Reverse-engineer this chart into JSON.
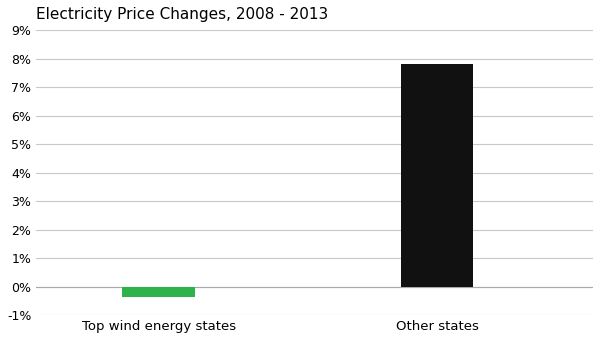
{
  "title": "Electricity Price Changes, 2008 - 2013",
  "categories": [
    "Top wind energy states",
    "Other states"
  ],
  "values": [
    -0.37,
    7.8
  ],
  "bar_colors": [
    "#2db34a",
    "#111111"
  ],
  "ylim": [
    -1,
    9
  ],
  "yticks": [
    -1,
    0,
    1,
    2,
    3,
    4,
    5,
    6,
    7,
    8,
    9
  ],
  "background_color": "#ffffff",
  "plot_bg_color": "#ffffff",
  "title_fontsize": 11,
  "tick_fontsize": 9,
  "label_fontsize": 9.5,
  "bar_width": 0.13,
  "x_positions": [
    0.22,
    0.72
  ],
  "xlim": [
    0.0,
    1.0
  ]
}
